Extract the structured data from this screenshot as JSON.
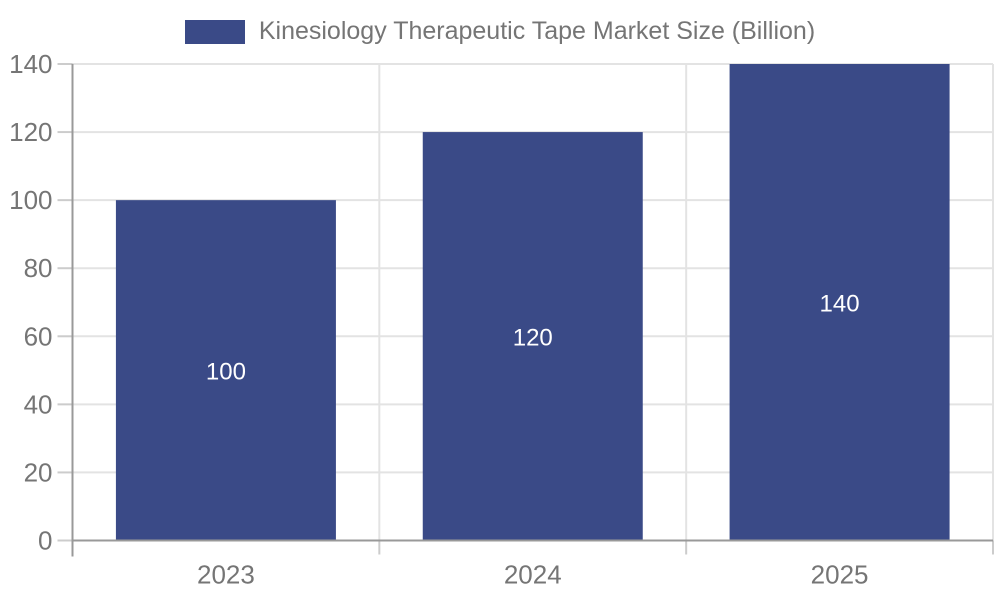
{
  "legend": {
    "label": "Kinesiology Therapeutic Tape Market Size (Billion)"
  },
  "colors": {
    "bar": "#3A4A87",
    "axis_line": "#999999",
    "grid_line": "#E3E3E3",
    "tick_mark": "#CCCCCC",
    "axis_text": "#757575",
    "data_label_text": "#FFFFFF",
    "background": "#FFFFFF"
  },
  "chart_data": {
    "type": "bar",
    "title": "Kinesiology Therapeutic Tape Market Size (Billion)",
    "categories": [
      "2023",
      "2024",
      "2025"
    ],
    "values": [
      100,
      120,
      140
    ],
    "series": [
      {
        "name": "Kinesiology Therapeutic Tape Market Size (Billion)",
        "values": [
          100,
          120,
          140
        ]
      }
    ],
    "data_labels": [
      "100",
      "120",
      "140"
    ],
    "y_tick_labels": [
      "0",
      "20",
      "40",
      "60",
      "80",
      "100",
      "120",
      "140"
    ],
    "ylim": [
      0,
      140
    ],
    "ytick_step": 20,
    "grid": true,
    "legend_position": "top"
  }
}
